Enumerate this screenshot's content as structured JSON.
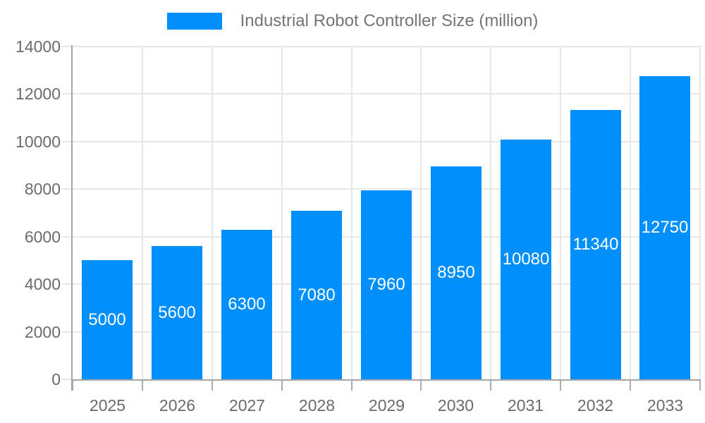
{
  "chart_data": {
    "type": "bar",
    "title": "Industrial Robot Controller Size (million)",
    "series": [
      {
        "name": "Industrial Robot Controller Size (million)",
        "values": [
          5000,
          5600,
          6300,
          7080,
          7960,
          8950,
          10080,
          11340,
          12750
        ]
      }
    ],
    "categories": [
      "2025",
      "2026",
      "2027",
      "2028",
      "2029",
      "2030",
      "2031",
      "2032",
      "2033"
    ],
    "xlabel": "",
    "ylabel": "",
    "ylim": [
      0,
      14000
    ],
    "yticks": [
      0,
      2000,
      4000,
      6000,
      8000,
      10000,
      12000,
      14000
    ],
    "grid": true,
    "legend_position": "top-center",
    "data_labels": "inside-center-white"
  },
  "colors": {
    "bar": "#008FFB",
    "background": "#FFFFFF",
    "gridline": "#E7E7E7",
    "axis_line": "#A6A6A6",
    "tick": "#ACACAC",
    "axis_text": "#6B6B6B",
    "legend_text": "#757575",
    "data_label": "#FFFFFF"
  }
}
